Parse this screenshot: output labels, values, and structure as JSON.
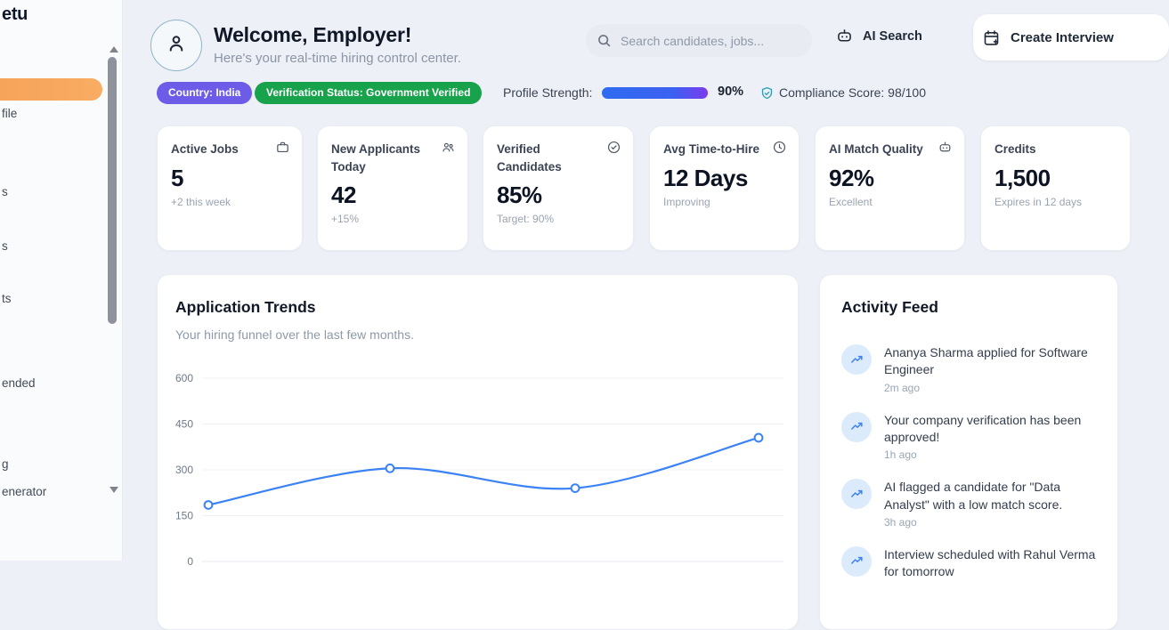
{
  "sidebar": {
    "logo_fragment": "etu",
    "item_fragments": [
      "file",
      "s",
      "s",
      "ts",
      "ended",
      "g",
      "enerator"
    ]
  },
  "header": {
    "title": "Welcome, Employer!",
    "subtitle": "Here's your real-time hiring control center.",
    "search_placeholder": "Search candidates, jobs...",
    "ai_search_label": "AI Search",
    "create_button_label": "Create Interview",
    "badges": {
      "country": "Country: India",
      "verification": "Verification Status: Government Verified",
      "profile_strength_label": "Profile Strength:",
      "profile_strength_percent": 90,
      "profile_strength_value": "90%",
      "compliance": "Compliance Score: 98/100"
    }
  },
  "stats": [
    {
      "title": "Active Jobs",
      "icon": "briefcase-icon",
      "value": "5",
      "sub": "+2 this week"
    },
    {
      "title": "New Applicants Today",
      "icon": "users-icon",
      "value": "42",
      "sub": "+15%"
    },
    {
      "title": "Verified Candidates",
      "icon": "check-circle-icon",
      "value": "85%",
      "sub": "Target: 90%"
    },
    {
      "title": "Avg Time-to-Hire",
      "icon": "clock-icon",
      "value": "12 Days",
      "sub": "Improving"
    },
    {
      "title": "AI Match Quality",
      "icon": "bot-icon",
      "value": "92%",
      "sub": "Excellent"
    },
    {
      "title": "Credits",
      "icon": null,
      "value": "1,500",
      "sub": "Expires in 12 days"
    }
  ],
  "chart_card": {
    "title": "Application Trends",
    "subtitle": "Your hiring funnel over the last few months."
  },
  "chart_data": {
    "type": "line",
    "title": "Application Trends",
    "categories": [
      "",
      "",
      "",
      ""
    ],
    "values": [
      185,
      305,
      240,
      405
    ],
    "ylim": [
      0,
      600
    ],
    "yticks": [
      0,
      150,
      300,
      450,
      600
    ],
    "grid": true,
    "legend": false,
    "line_color": "#3b82f6",
    "note": "x-axis tick labels are cropped below the visible viewport"
  },
  "activity": {
    "title": "Activity Feed",
    "items": [
      {
        "text": "Ananya Sharma applied for Software Engineer",
        "time": "2m ago"
      },
      {
        "text": "Your company verification has been approved!",
        "time": "1h ago"
      },
      {
        "text": "AI flagged a candidate for \"Data Analyst\" with a low match score.",
        "time": "3h ago"
      },
      {
        "text": "Interview scheduled with Rahul Verma for tomorrow",
        "time": ""
      }
    ]
  },
  "colors": {
    "accent_blue": "#3b82f6",
    "badge_purple": "#6c5ce7",
    "badge_green": "#17a24b",
    "active_nav_orange": "#f7a45a",
    "progress_gradient_end": "#7c3bee",
    "compliance_teal": "#2e9db5"
  }
}
